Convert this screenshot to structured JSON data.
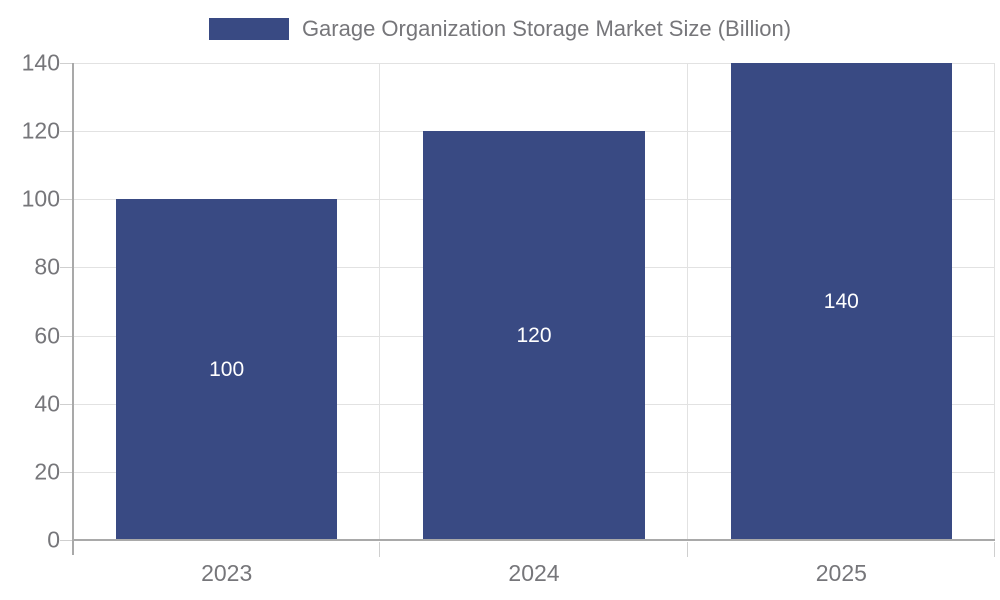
{
  "chart_data": {
    "type": "bar",
    "title": "Garage Organization Storage Market Size (Billion)",
    "categories": [
      "2023",
      "2024",
      "2025"
    ],
    "series": [
      {
        "name": "Garage Organization Storage Market Size (Billion)",
        "values": [
          100,
          120,
          140
        ]
      }
    ],
    "data_labels": [
      "100",
      "120",
      "140"
    ],
    "xlabel": "",
    "ylabel": "",
    "ylim": [
      0,
      140
    ],
    "yticks": [
      0,
      20,
      40,
      60,
      80,
      100,
      120,
      140
    ],
    "ytick_labels": [
      "0",
      "20",
      "40",
      "60",
      "80",
      "100",
      "120",
      "140"
    ],
    "grid": true,
    "legend_position": "top",
    "colors": {
      "bar": "#394A83",
      "text": "#76767A",
      "axis": "#A9A9A9",
      "grid": "#E2E2E2",
      "tick": "#CFCFCF",
      "data_label": "#FFFFFF",
      "background": "#FFFFFF"
    }
  }
}
